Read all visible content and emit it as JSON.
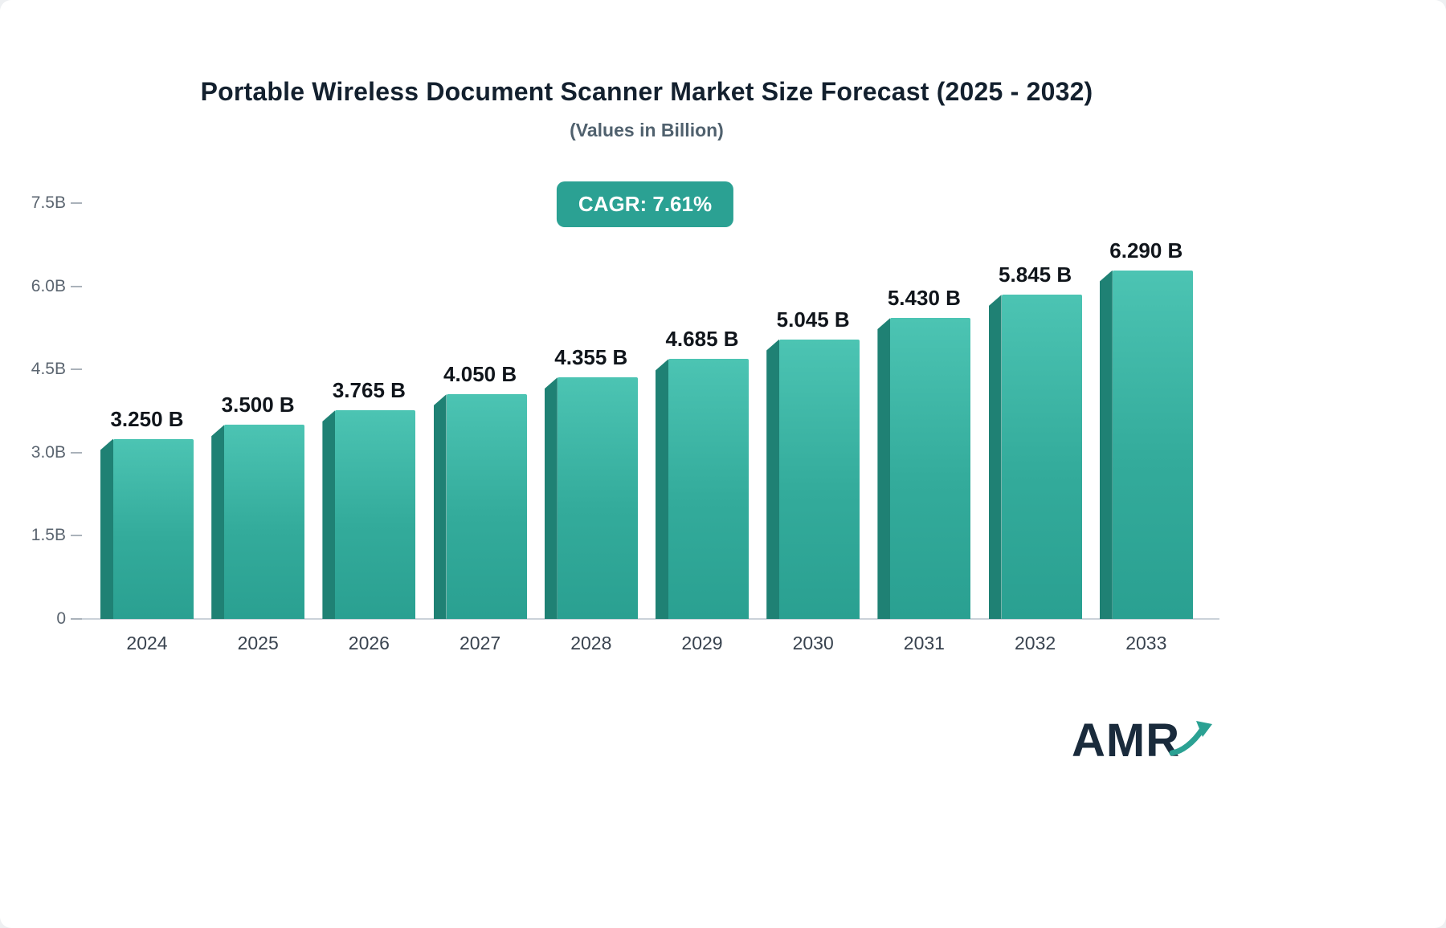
{
  "chart_data": {
    "type": "bar",
    "title": "Portable Wireless Document Scanner Market Size Forecast (2025 - 2032)",
    "subtitle": "(Values in Billion)",
    "cagr_label": "CAGR: 7.61%",
    "categories": [
      "2024",
      "2025",
      "2026",
      "2027",
      "2028",
      "2029",
      "2030",
      "2031",
      "2032",
      "2033"
    ],
    "values": [
      3.25,
      3.5,
      3.765,
      4.05,
      4.355,
      4.685,
      5.045,
      5.43,
      5.845,
      6.29
    ],
    "value_labels": [
      "3.250 B",
      "3.500 B",
      "3.765 B",
      "4.050 B",
      "4.355 B",
      "4.685 B",
      "5.045 B",
      "5.430 B",
      "5.845 B",
      "6.290 B"
    ],
    "xlabel": "",
    "ylabel": "",
    "ylim": [
      0,
      7.5
    ],
    "yticks": [
      {
        "label": "7.5B",
        "value": 7.5
      },
      {
        "label": "6.0B",
        "value": 6.0
      },
      {
        "label": "4.5B",
        "value": 4.5
      },
      {
        "label": "3.0B",
        "value": 3.0
      },
      {
        "label": "1.5B",
        "value": 1.5
      },
      {
        "label": "0",
        "value": 0.0
      }
    ],
    "grid": false,
    "legend": "none",
    "colors": {
      "bar_face_top": "#4cc4b3",
      "bar_face_bottom": "#2aa091",
      "bar_side": "#1F8174",
      "badge_bg": "#2BA193",
      "title_text": "#13202e",
      "subtitle_text": "#50616e",
      "axis_text": "#5b6570",
      "value_text": "#10151b",
      "baseline": "#cbd2d9",
      "arrow": "#2BA193",
      "logo_text": "#1a2b3c"
    }
  },
  "logo": {
    "text": "AMR"
  }
}
